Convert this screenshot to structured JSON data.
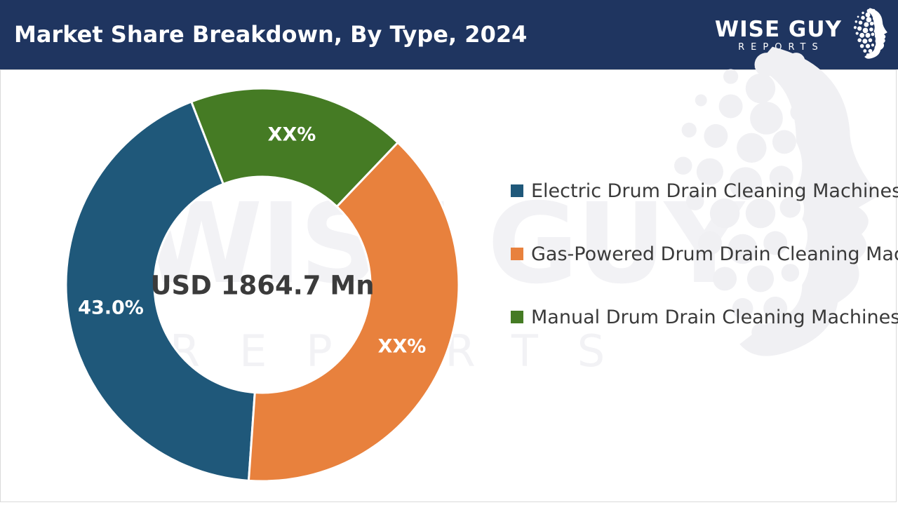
{
  "header": {
    "title": "Market Share Breakdown, By Type, 2024",
    "logo": {
      "name": "WISE GUY",
      "subtext": "REPORTS"
    }
  },
  "watermark": {
    "text_primary": "WISE GUY",
    "text_secondary": "REPORTS"
  },
  "chart_data": {
    "type": "pie",
    "subtype": "donut",
    "title": "Market Share Breakdown, By Type, 2024",
    "center_label": "USD 1864.7 Mn",
    "start_angle_deg": 184,
    "legend_position": "right",
    "slices": [
      {
        "label": "Electric Drum Drain Cleaning Machines",
        "value_pct": 43.0,
        "display": "43.0%",
        "color": "#1F587A"
      },
      {
        "label": "Manual Drum Drain Cleaning Machines",
        "value_pct": 18.0,
        "display": "XX%",
        "color": "#457B24"
      },
      {
        "label": "Gas-Powered Drum Drain Cleaning Machines",
        "value_pct": 39.0,
        "display": "XX%",
        "color": "#E8813D"
      }
    ],
    "legend": [
      {
        "label": "Electric Drum Drain Cleaning Machines",
        "color": "#1F587A"
      },
      {
        "label": "Gas-Powered Drum Drain Cleaning Machines",
        "color": "#E8813D"
      },
      {
        "label": "Manual Drum Drain Cleaning Machines",
        "color": "#457B24"
      }
    ]
  },
  "colors": {
    "header_bg": "#1F3560",
    "blue": "#1F587A",
    "orange": "#E8813D",
    "green": "#457B24",
    "center_text": "#3B3B3B",
    "legend_text": "#3A3A3A",
    "panel_border": "#D9D9D9",
    "watermark": "#F2F2F5",
    "slice_gap": "#FFFFFF"
  }
}
